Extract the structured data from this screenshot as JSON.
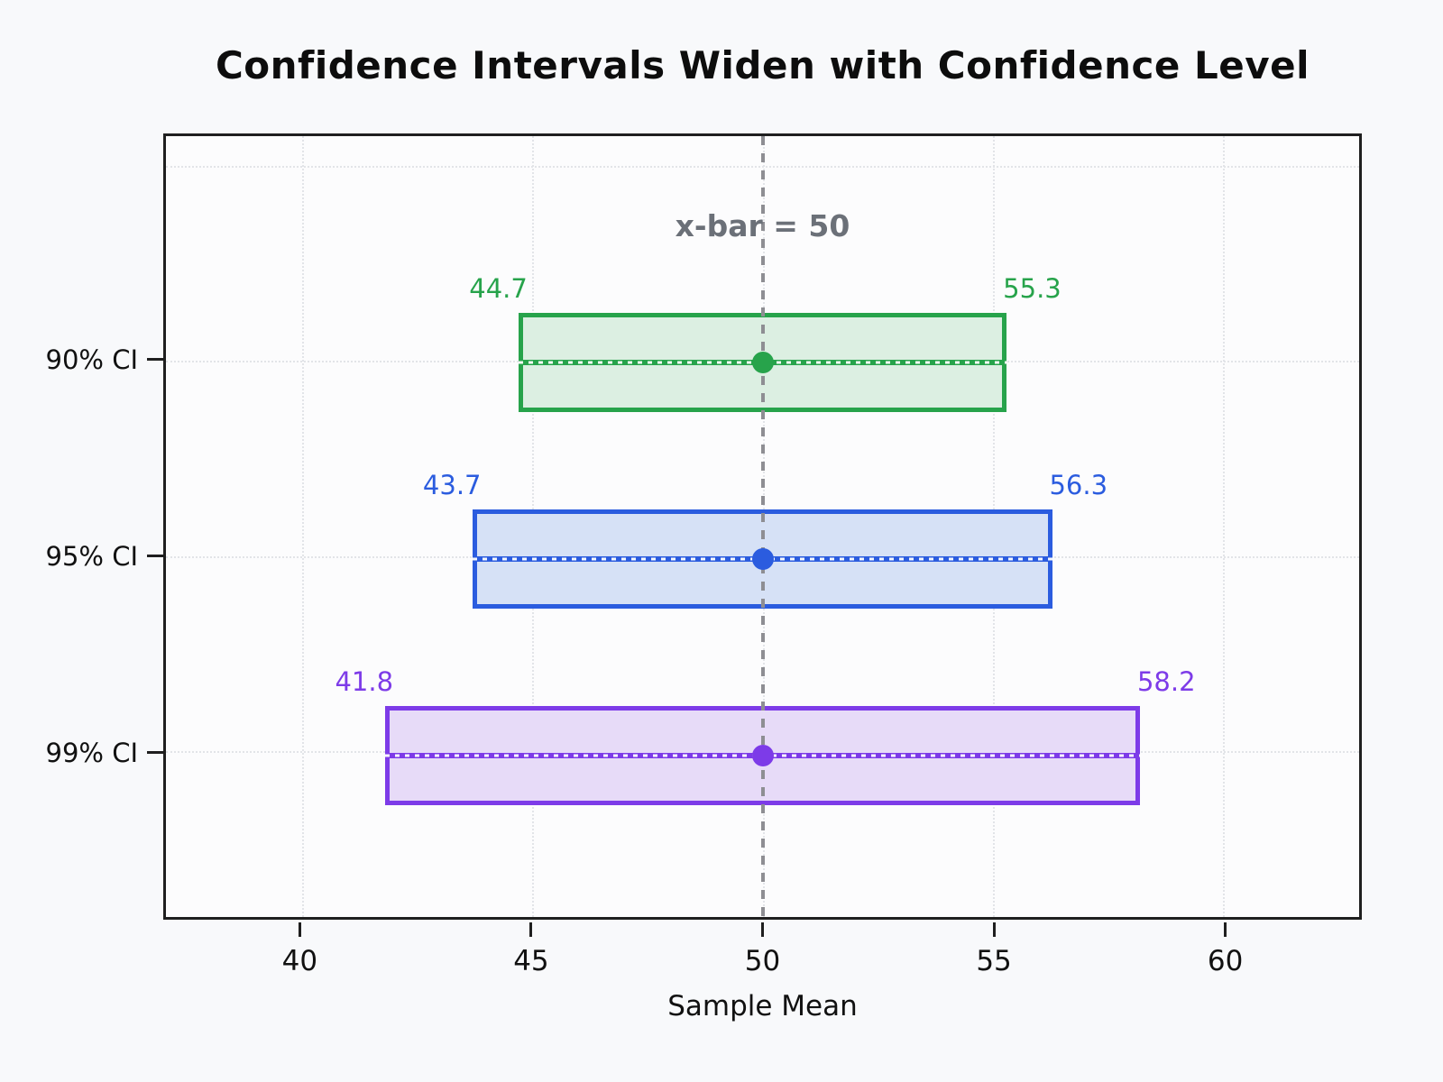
{
  "chart_data": {
    "type": "bar",
    "subtype": "horizontal-confidence-interval-chart",
    "title": "Confidence Intervals Widen with Confidence Level",
    "xlabel": "Sample Mean",
    "ylabel": "",
    "categories": [
      "90% CI",
      "95% CI",
      "99% CI"
    ],
    "intervals": [
      {
        "label": "90% CI",
        "lower": 44.7,
        "upper": 55.3,
        "mean": 50,
        "color": "#27a34b",
        "fill": "#dcefe2"
      },
      {
        "label": "95% CI",
        "lower": 43.7,
        "upper": 56.3,
        "mean": 50,
        "color": "#2b5cdf",
        "fill": "#d6e1f6"
      },
      {
        "label": "99% CI",
        "lower": 41.8,
        "upper": 58.2,
        "mean": 50,
        "color": "#7d3be8",
        "fill": "#e7dbf8"
      }
    ],
    "xlim": [
      37.05,
      62.95
    ],
    "xticks": [
      40,
      45,
      50,
      55,
      60
    ],
    "grid": true,
    "legend": "none",
    "mean_line": {
      "value": 50,
      "label": "x-bar = 50",
      "color": "#8e8e93",
      "label_color": "#6b7078"
    }
  }
}
